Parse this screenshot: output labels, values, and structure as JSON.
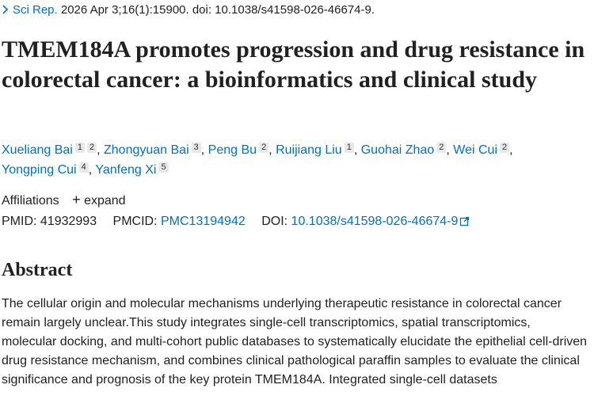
{
  "citation": {
    "journal": "Sci Rep.",
    "details": "2026 Apr 3;16(1):15900. doi: 10.1038/s41598-026-46674-9."
  },
  "title": "TMEM184A promotes progression and drug resistance in colorectal cancer: a bioinformatics and clinical study",
  "authors": [
    {
      "name": "Xueliang Bai",
      "affiliations": [
        "1",
        "2"
      ]
    },
    {
      "name": "Zhongyuan Bai",
      "affiliations": [
        "3"
      ]
    },
    {
      "name": "Peng Bu",
      "affiliations": [
        "2"
      ]
    },
    {
      "name": "Ruijiang Liu",
      "affiliations": [
        "1"
      ]
    },
    {
      "name": "Guohai Zhao",
      "affiliations": [
        "2"
      ]
    },
    {
      "name": "Wei Cui",
      "affiliations": [
        "2"
      ]
    },
    {
      "name": "Yongping Cui",
      "affiliations": [
        "4"
      ]
    },
    {
      "name": "Yanfeng Xi",
      "affiliations": [
        "5"
      ]
    }
  ],
  "affiliations": {
    "label": "Affiliations",
    "toggle": "expand"
  },
  "identifiers": {
    "pmid": {
      "label": "PMID:",
      "value": "41932993"
    },
    "pmcid": {
      "label": "PMCID:",
      "value": "PMC13194942"
    },
    "doi": {
      "label": "DOI:",
      "value": "10.1038/s41598-026-46674-9"
    }
  },
  "abstract": {
    "heading": "Abstract",
    "text": "The cellular origin and molecular mechanisms underlying therapeutic resistance in colorectal cancer remain largely unclear.This study integrates single-cell transcriptomics, spatial transcriptomics, molecular docking, and multi-cohort public databases to systematically elucidate the epithelial cell-driven drug resistance mechanism, and combines clinical pathological paraffin samples to evaluate the clinical significance and prognosis of the key protein TMEM184A. Integrated single-cell datasets"
  }
}
